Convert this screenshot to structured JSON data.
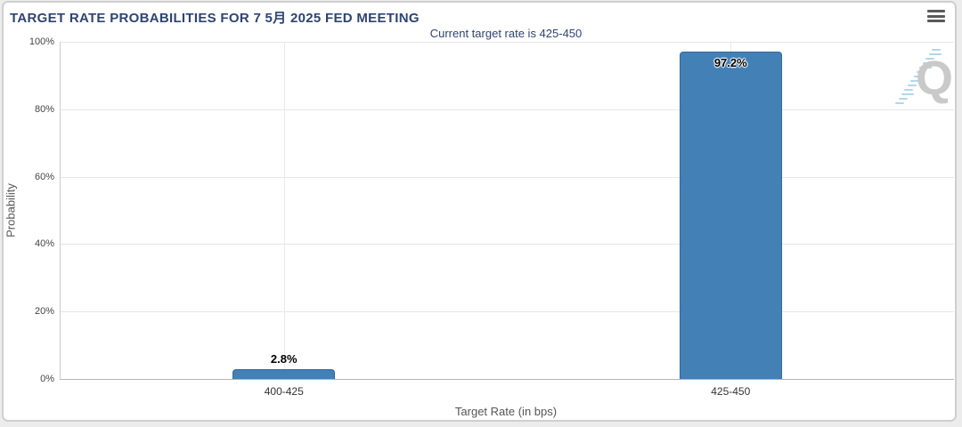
{
  "header": {
    "title": "TARGET RATE PROBABILITIES FOR 7 5月 2025 FED MEETING"
  },
  "chart_data": {
    "type": "bar",
    "title": "Current target rate is 425-450",
    "categories": [
      "400-425",
      "425-450"
    ],
    "values": [
      2.8,
      97.2
    ],
    "value_labels": [
      "2.8%",
      "97.2%"
    ],
    "xlabel": "Target Rate (in bps)",
    "ylabel": "Probability",
    "ylim": [
      0,
      100
    ],
    "ytick_values": [
      0,
      20,
      40,
      60,
      80,
      100
    ],
    "ytick_labels": [
      "0%",
      "20%",
      "40%",
      "60%",
      "80%",
      "100%"
    ],
    "grid": true,
    "legend": "none",
    "bar_color": "#4280b6",
    "bar_border_color": "#35699a"
  },
  "watermark": {
    "letter": "Q"
  },
  "colors": {
    "title_navy": "#2e4473",
    "grid": "#e6e6e6",
    "axis_line": "#cccccc",
    "card_border": "#cfcfcf",
    "watermark_gray": "#c9c9c9",
    "watermark_blue": "#b3d6e8"
  }
}
